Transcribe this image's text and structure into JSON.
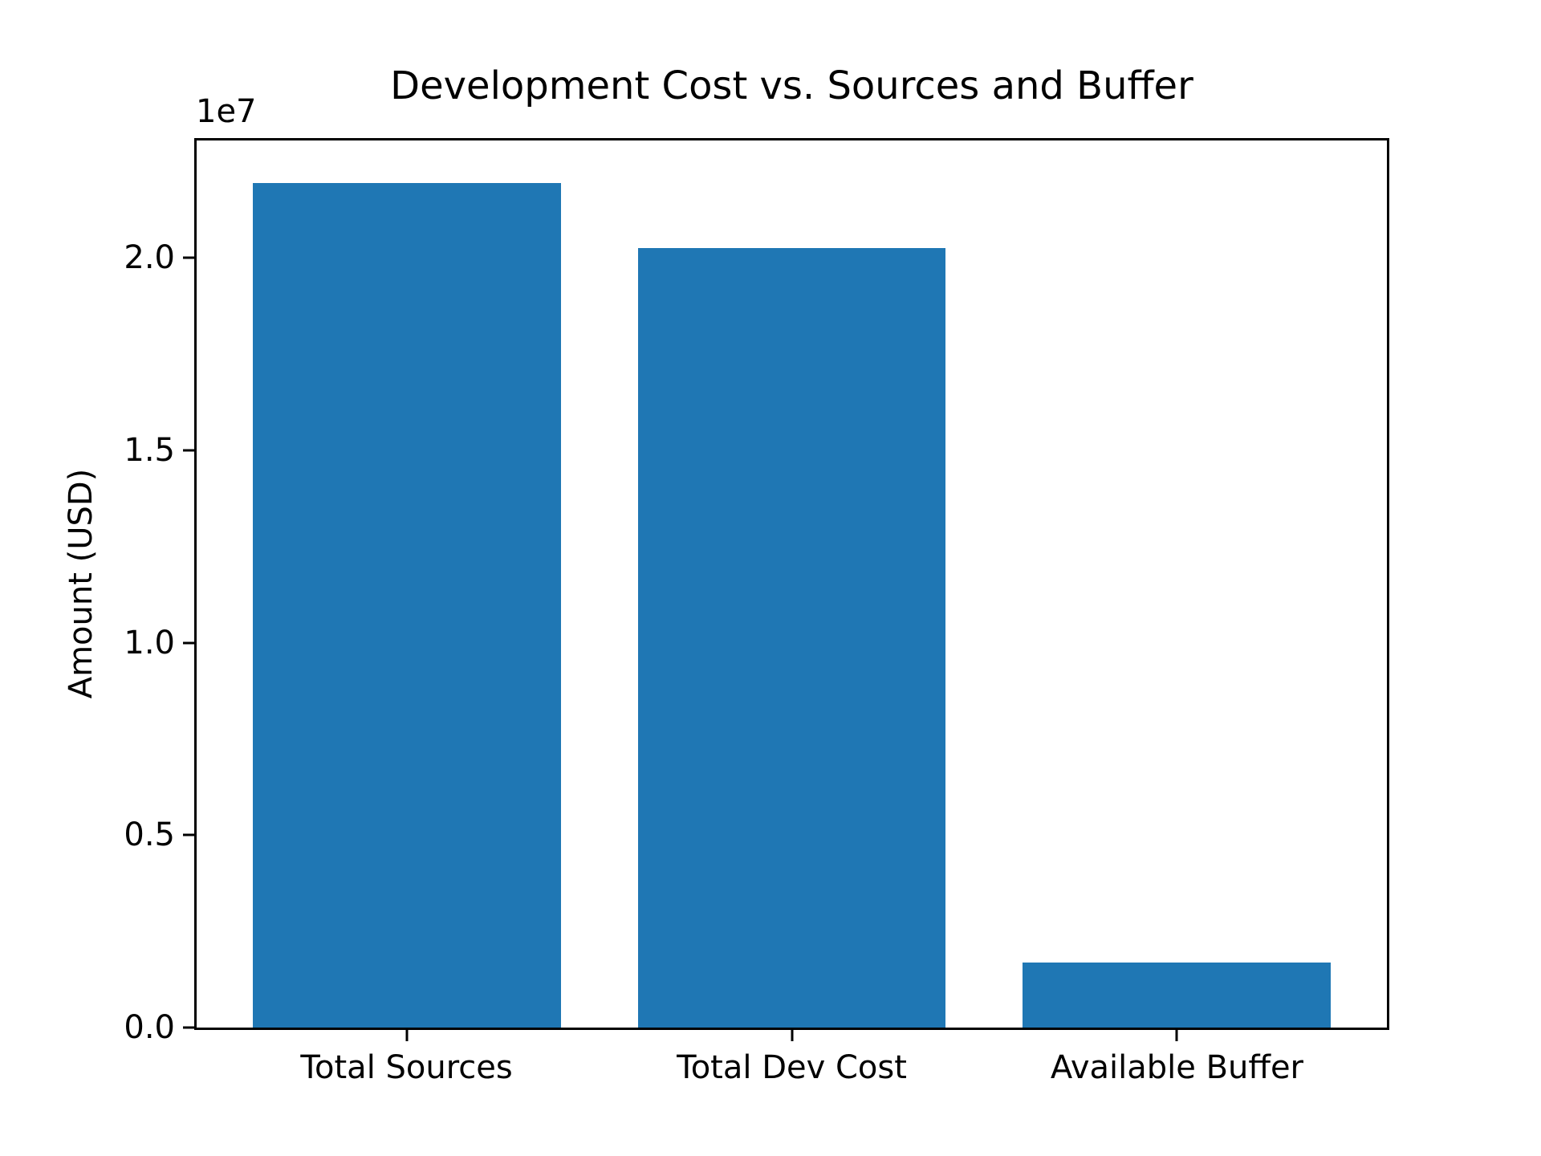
{
  "chart_data": {
    "type": "bar",
    "title": "Development Cost vs. Sources and Buffer",
    "ylabel": "Amount (USD)",
    "xlabel": "",
    "y_offset_text": "1e7",
    "categories": [
      "Total Sources",
      "Total Dev Cost",
      "Available Buffer"
    ],
    "values": [
      21950000,
      20250000,
      1700000
    ],
    "bar_color": "#1f77b4",
    "text_color": "#000000",
    "background_color": "#ffffff",
    "bar_width": 0.8,
    "xlim": [
      -0.545,
      2.545
    ],
    "ylim": [
      0,
      23047500
    ],
    "yticks": [
      {
        "value": 0,
        "label": "0.0"
      },
      {
        "value": 5000000,
        "label": "0.5"
      },
      {
        "value": 10000000,
        "label": "1.0"
      },
      {
        "value": 15000000,
        "label": "1.5"
      },
      {
        "value": 20000000,
        "label": "2.0"
      }
    ],
    "grid": false,
    "legend": "none"
  }
}
